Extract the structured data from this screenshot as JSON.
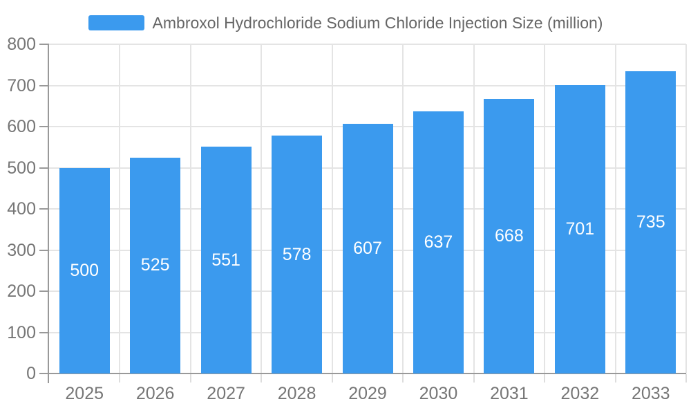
{
  "chart_data": {
    "type": "bar",
    "title": "Ambroxol Hydrochloride Sodium Chloride Injection Size (million)",
    "categories": [
      "2025",
      "2026",
      "2027",
      "2028",
      "2029",
      "2030",
      "2031",
      "2032",
      "2033"
    ],
    "values": [
      500,
      525,
      551,
      578,
      607,
      637,
      668,
      701,
      735
    ],
    "xlabel": "",
    "ylabel": "",
    "ylim": [
      0,
      800
    ],
    "ytick_step": 100,
    "yticks": [
      "0",
      "100",
      "200",
      "300",
      "400",
      "500",
      "600",
      "700",
      "800"
    ],
    "grid": true,
    "legend_position": "top-center",
    "value_labels": "inside-center",
    "colors": {
      "bar": "#3B9AEE",
      "value_label": "#FFFFFF",
      "axis": "#999999",
      "gridline": "#E4E4E4",
      "x_tick_mark": "#DDDDDD",
      "tick_label": "#767676",
      "legend_text": "#666666",
      "background": "#FFFFFF"
    }
  }
}
